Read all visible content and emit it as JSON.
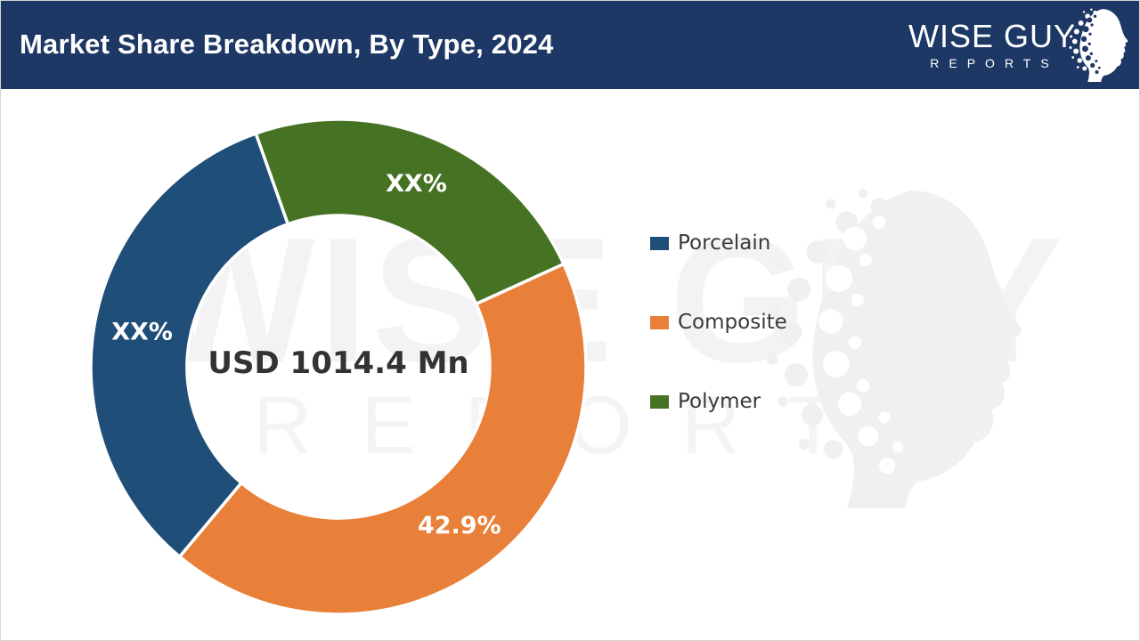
{
  "header": {
    "title": "Market Share Breakdown, By Type, 2024",
    "logo": {
      "brand": "WISE GUY",
      "sub": "REPORTS"
    }
  },
  "watermark": {
    "brand": "WISE GUY",
    "sub": "REPORTS"
  },
  "chart_data": {
    "type": "donut",
    "title": "Market Share Breakdown, By Type, 2024",
    "center_label": "USD 1014.4 Mn",
    "total_value": 1014.4,
    "unit": "USD Mn",
    "start_angle_deg": -19.5,
    "outer_radius": 278,
    "inner_radius": 170,
    "label_radius": 224,
    "slices": [
      {
        "name": "Polymer",
        "label": "XX%",
        "value_pct": 23.6,
        "color": "#467224"
      },
      {
        "name": "Composite",
        "label": "42.9%",
        "value_pct": 42.9,
        "color": "#e8803a"
      },
      {
        "name": "Porcelain",
        "label": "XX%",
        "value_pct": 33.5,
        "color": "#1f4e78"
      }
    ],
    "legend": [
      {
        "label": "Porcelain",
        "color": "#1f4e78"
      },
      {
        "label": "Composite",
        "color": "#e8803a"
      },
      {
        "label": "Polymer",
        "color": "#467224"
      }
    ],
    "legend_position": "right"
  },
  "colors": {
    "header_bg": "#1e3866",
    "watermark_text": "#f3f3f5",
    "watermark_face": "#f0f0f3",
    "center_text": "#333333",
    "border": "#d7d7d7"
  }
}
